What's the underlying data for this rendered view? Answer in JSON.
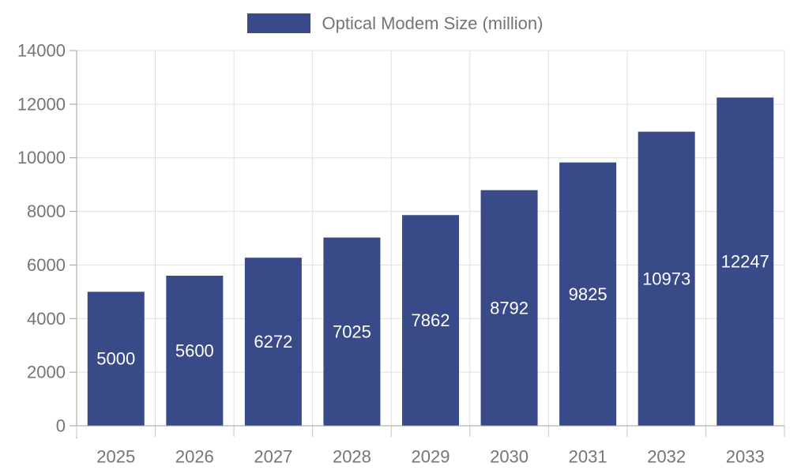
{
  "legend": {
    "label": "Optical Modem Size (million)"
  },
  "colors": {
    "bar": "#384A87",
    "grid": "#E0E0E0",
    "axis": "#A0A0A0",
    "x_tick": "#C6C6C6",
    "tick_label": "#757575",
    "bar_label": "#FFFFFF",
    "legend_text": "#757575",
    "background": "#FFFFFF"
  },
  "chart_data": {
    "type": "bar",
    "title": "",
    "legend_entries": [
      "Optical Modem Size (million)"
    ],
    "legend_position": "top-center",
    "categories": [
      "2025",
      "2026",
      "2027",
      "2028",
      "2029",
      "2030",
      "2031",
      "2032",
      "2033"
    ],
    "values": [
      5000,
      5600,
      6272,
      7025,
      7862,
      8792,
      9825,
      10973,
      12247
    ],
    "series_name": "Optical Modem Size (million)",
    "xlabel": "",
    "ylabel": "",
    "ylim": [
      0,
      14000
    ],
    "ytick_step": 2000,
    "ytick_labels": [
      "0",
      "2000",
      "4000",
      "6000",
      "8000",
      "10000",
      "12000",
      "14000"
    ],
    "grid": true,
    "value_labels": "inside-center"
  }
}
